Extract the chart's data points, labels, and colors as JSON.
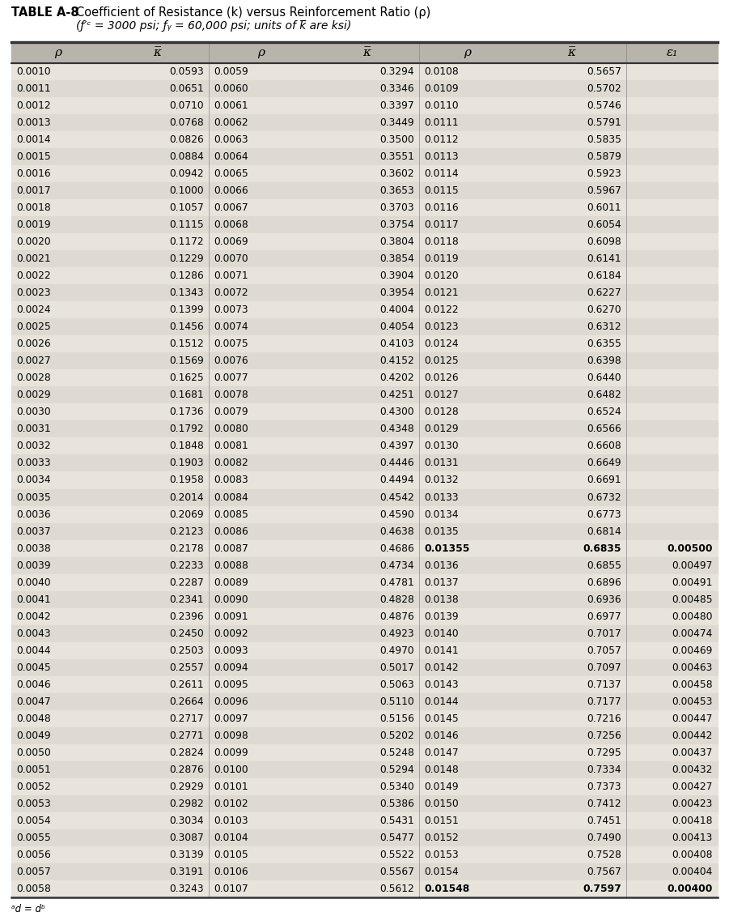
{
  "title_bold": "TABLE A-8",
  "title_main": "Coefficient of Resistance (k) versus Reinforcement Ratio (ρ)",
  "title_sub": "(ƒ′ᶜ = 3000 psi; ƒᵧ = 60,000 psi; units of k̅ are ksi)",
  "col1_rho": [
    "0.0010",
    "0.0011",
    "0.0012",
    "0.0013",
    "0.0014",
    "0.0015",
    "0.0016",
    "0.0017",
    "0.0018",
    "0.0019",
    "0.0020",
    "0.0021",
    "0.0022",
    "0.0023",
    "0.0024",
    "0.0025",
    "0.0026",
    "0.0027",
    "0.0028",
    "0.0029",
    "0.0030",
    "0.0031",
    "0.0032",
    "0.0033",
    "0.0034",
    "0.0035",
    "0.0036",
    "0.0037",
    "0.0038",
    "0.0039",
    "0.0040",
    "0.0041",
    "0.0042",
    "0.0043",
    "0.0044",
    "0.0045",
    "0.0046",
    "0.0047",
    "0.0048",
    "0.0049",
    "0.0050",
    "0.0051",
    "0.0052",
    "0.0053",
    "0.0054",
    "0.0055",
    "0.0056",
    "0.0057",
    "0.0058"
  ],
  "col1_k": [
    "0.0593",
    "0.0651",
    "0.0710",
    "0.0768",
    "0.0826",
    "0.0884",
    "0.0942",
    "0.1000",
    "0.1057",
    "0.1115",
    "0.1172",
    "0.1229",
    "0.1286",
    "0.1343",
    "0.1399",
    "0.1456",
    "0.1512",
    "0.1569",
    "0.1625",
    "0.1681",
    "0.1736",
    "0.1792",
    "0.1848",
    "0.1903",
    "0.1958",
    "0.2014",
    "0.2069",
    "0.2123",
    "0.2178",
    "0.2233",
    "0.2287",
    "0.2341",
    "0.2396",
    "0.2450",
    "0.2503",
    "0.2557",
    "0.2611",
    "0.2664",
    "0.2717",
    "0.2771",
    "0.2824",
    "0.2876",
    "0.2929",
    "0.2982",
    "0.3034",
    "0.3087",
    "0.3139",
    "0.3191",
    "0.3243"
  ],
  "col2_rho": [
    "0.0059",
    "0.0060",
    "0.0061",
    "0.0062",
    "0.0063",
    "0.0064",
    "0.0065",
    "0.0066",
    "0.0067",
    "0.0068",
    "0.0069",
    "0.0070",
    "0.0071",
    "0.0072",
    "0.0073",
    "0.0074",
    "0.0075",
    "0.0076",
    "0.0077",
    "0.0078",
    "0.0079",
    "0.0080",
    "0.0081",
    "0.0082",
    "0.0083",
    "0.0084",
    "0.0085",
    "0.0086",
    "0.0087",
    "0.0088",
    "0.0089",
    "0.0090",
    "0.0091",
    "0.0092",
    "0.0093",
    "0.0094",
    "0.0095",
    "0.0096",
    "0.0097",
    "0.0098",
    "0.0099",
    "0.0100",
    "0.0101",
    "0.0102",
    "0.0103",
    "0.0104",
    "0.0105",
    "0.0106",
    "0.0107"
  ],
  "col2_k": [
    "0.3294",
    "0.3346",
    "0.3397",
    "0.3449",
    "0.3500",
    "0.3551",
    "0.3602",
    "0.3653",
    "0.3703",
    "0.3754",
    "0.3804",
    "0.3854",
    "0.3904",
    "0.3954",
    "0.4004",
    "0.4054",
    "0.4103",
    "0.4152",
    "0.4202",
    "0.4251",
    "0.4300",
    "0.4348",
    "0.4397",
    "0.4446",
    "0.4494",
    "0.4542",
    "0.4590",
    "0.4638",
    "0.4686",
    "0.4734",
    "0.4781",
    "0.4828",
    "0.4876",
    "0.4923",
    "0.4970",
    "0.5017",
    "0.5063",
    "0.5110",
    "0.5156",
    "0.5202",
    "0.5248",
    "0.5294",
    "0.5340",
    "0.5386",
    "0.5431",
    "0.5477",
    "0.5522",
    "0.5567",
    "0.5612"
  ],
  "col3_rho": [
    "0.0108",
    "0.0109",
    "0.0110",
    "0.0111",
    "0.0112",
    "0.0113",
    "0.0114",
    "0.0115",
    "0.0116",
    "0.0117",
    "0.0118",
    "0.0119",
    "0.0120",
    "0.0121",
    "0.0122",
    "0.0123",
    "0.0124",
    "0.0125",
    "0.0126",
    "0.0127",
    "0.0128",
    "0.0129",
    "0.0130",
    "0.0131",
    "0.0132",
    "0.0133",
    "0.0134",
    "0.0135",
    "0.01355",
    "0.0136",
    "0.0137",
    "0.0138",
    "0.0139",
    "0.0140",
    "0.0141",
    "0.0142",
    "0.0143",
    "0.0144",
    "0.0145",
    "0.0146",
    "0.0147",
    "0.0148",
    "0.0149",
    "0.0150",
    "0.0151",
    "0.0152",
    "0.0153",
    "0.0154",
    "0.01548"
  ],
  "col3_k": [
    "0.5657",
    "0.5702",
    "0.5746",
    "0.5791",
    "0.5835",
    "0.5879",
    "0.5923",
    "0.5967",
    "0.6011",
    "0.6054",
    "0.6098",
    "0.6141",
    "0.6184",
    "0.6227",
    "0.6270",
    "0.6312",
    "0.6355",
    "0.6398",
    "0.6440",
    "0.6482",
    "0.6524",
    "0.6566",
    "0.6608",
    "0.6649",
    "0.6691",
    "0.6732",
    "0.6773",
    "0.6814",
    "0.6835",
    "0.6855",
    "0.6896",
    "0.6936",
    "0.6977",
    "0.7017",
    "0.7057",
    "0.7097",
    "0.7137",
    "0.7177",
    "0.7216",
    "0.7256",
    "0.7295",
    "0.7334",
    "0.7373",
    "0.7412",
    "0.7451",
    "0.7490",
    "0.7528",
    "0.7567",
    "0.7597"
  ],
  "col4_eps": [
    "",
    "",
    "",
    "",
    "",
    "",
    "",
    "",
    "",
    "",
    "",
    "",
    "",
    "",
    "",
    "",
    "",
    "",
    "",
    "",
    "",
    "",
    "",
    "",
    "",
    "",
    "",
    "",
    "0.00500",
    "0.00497",
    "0.00491",
    "0.00485",
    "0.00480",
    "0.00474",
    "0.00469",
    "0.00463",
    "0.00458",
    "0.00453",
    "0.00447",
    "0.00442",
    "0.00437",
    "0.00432",
    "0.00427",
    "0.00423",
    "0.00418",
    "0.00413",
    "0.00408",
    "0.00404",
    "0.00400"
  ],
  "bold_rows": [
    28,
    48
  ],
  "bg_color": "#ffffff",
  "table_bg": "#e8e6e0",
  "header_bg": "#b8b4ac",
  "stripe_even": "#dedad2",
  "stripe_odd": "#e8e4dc"
}
